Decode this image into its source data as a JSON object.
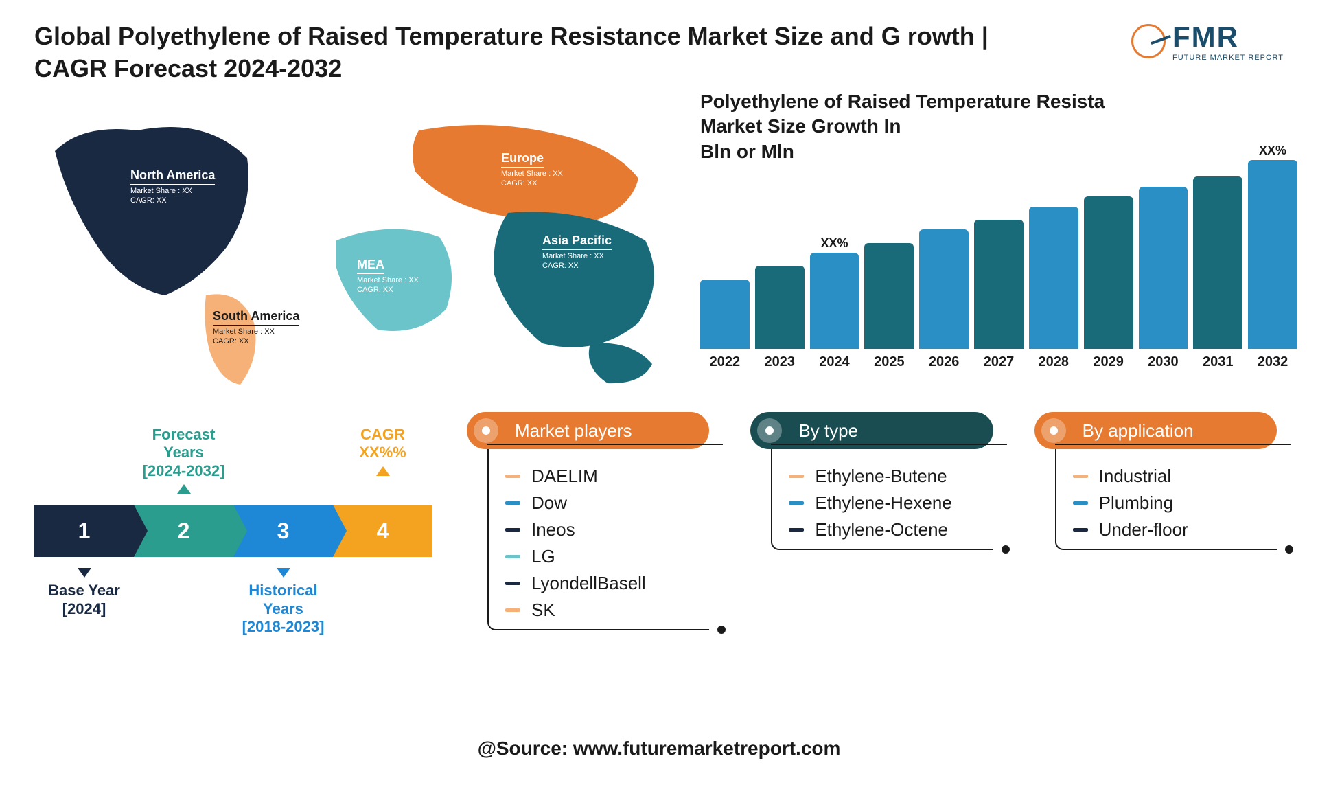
{
  "title": "Global Polyethylene of Raised Temperature Resistance Market Size and G\nrowth | CAGR Forecast 2024-2032",
  "logo": {
    "main": "FMR",
    "sub": "FUTURE MARKET REPORT"
  },
  "source": "@Source: www.futuremarketreport.com",
  "map": {
    "regions": [
      {
        "name": "North America",
        "label1": "Market Share : XX",
        "label2": "CAGR: XX",
        "color": "#1a2942"
      },
      {
        "name": "South America",
        "label1": "Market Share : XX",
        "label2": "CAGR: XX",
        "color": "#f5b178"
      },
      {
        "name": "Europe",
        "label1": "Market Share : XX",
        "label2": "CAGR: XX",
        "color": "#e67a30"
      },
      {
        "name": "MEA",
        "label1": "Market Share : XX",
        "label2": "CAGR: XX",
        "color": "#6bc4c9"
      },
      {
        "name": "Asia Pacific",
        "label1": "Market Share : XX",
        "label2": "CAGR: XX",
        "color": "#1a6b7a"
      }
    ]
  },
  "chart": {
    "type": "bar",
    "title_line1": "Polyethylene of Raised Temperature Resista",
    "title_line2": "Market Size Growth In",
    "title_line3": "Bln or Mln",
    "title_fontsize": 28,
    "years": [
      "2022",
      "2023",
      "2024",
      "2025",
      "2026",
      "2027",
      "2028",
      "2029",
      "2030",
      "2031",
      "2032"
    ],
    "values": [
      105,
      125,
      145,
      160,
      180,
      195,
      215,
      230,
      245,
      260,
      285
    ],
    "ylim": [
      0,
      290
    ],
    "colors": [
      "#2a8fc4",
      "#1a6b7a",
      "#2a8fc4",
      "#1a6b7a",
      "#2a8fc4",
      "#1a6b7a",
      "#2a8fc4",
      "#1a6b7a",
      "#2a8fc4",
      "#1a6b7a",
      "#2a8fc4"
    ],
    "annotations": [
      {
        "text": "XX%",
        "bar_index": 2
      },
      {
        "text": "XX%",
        "bar_index": 10
      }
    ],
    "label_fontsize": 20,
    "background_color": "#ffffff"
  },
  "timeline": {
    "forecast_label": "Forecast Years",
    "forecast_range": "[2024-2032]",
    "cagr_label": "CAGR",
    "cagr_value": "XX%%",
    "base_label": "Base Year",
    "base_value": "[2024]",
    "hist_label": "Historical Years",
    "hist_range": "[2018-2023]",
    "steps": [
      "1",
      "2",
      "3",
      "4"
    ],
    "step_colors": [
      "#1a2942",
      "#2a9d8f",
      "#1e88d6",
      "#f4a321"
    ]
  },
  "categories": [
    {
      "title": "Market players",
      "pill_color": "#e67a30",
      "items": [
        "DAELIM",
        "Dow",
        "Ineos",
        "LG",
        "LyondellBasell",
        "SK"
      ],
      "dash_colors": [
        "#f5b178",
        "#2a8fc4",
        "#1a2942",
        "#6bc4c9",
        "#1a2942",
        "#f5b178"
      ]
    },
    {
      "title": "By type",
      "pill_color": "#1a4d52",
      "items": [
        "Ethylene-Butene",
        "Ethylene-Hexene",
        "Ethylene-Octene"
      ],
      "dash_colors": [
        "#f5b178",
        "#2a8fc4",
        "#1a2942"
      ]
    },
    {
      "title": "By application",
      "pill_color": "#e67a30",
      "items": [
        "Industrial",
        "Plumbing",
        "Under-floor"
      ],
      "dash_colors": [
        "#f5b178",
        "#2a8fc4",
        "#1a2942"
      ]
    }
  ]
}
